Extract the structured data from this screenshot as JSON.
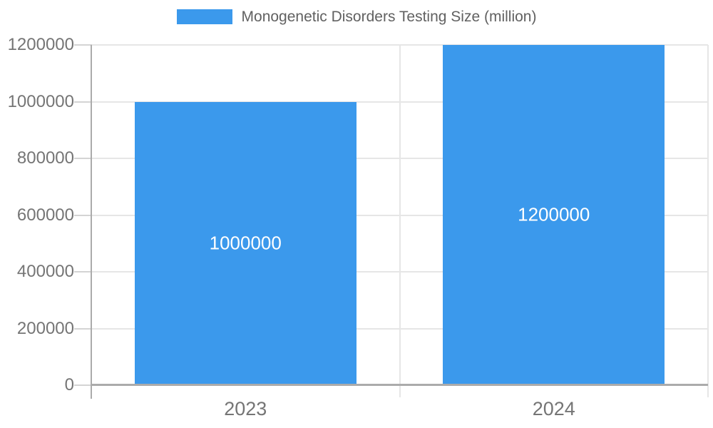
{
  "legend": {
    "label": "Monogenetic Disorders Testing Size (million)"
  },
  "colors": {
    "bar": "#3B99EC",
    "bar_label_text": "#ffffff",
    "grid_line": "#e6e6e6",
    "axis_line": "#ababab",
    "tick_mark": "#d4d4d4",
    "y_tick_text": "#757575",
    "x_tick_text": "#757575",
    "legend_text": "#616161",
    "background": "#ffffff"
  },
  "chart_data": {
    "type": "bar",
    "title": "Monogenetic Disorders Testing Size (million)",
    "categories": [
      "2023",
      "2024"
    ],
    "values": [
      1000000,
      1200000
    ],
    "bar_labels": [
      "1000000",
      "1200000"
    ],
    "ylim": [
      0,
      1200000
    ],
    "y_ticks": [
      0,
      200000,
      400000,
      600000,
      800000,
      1000000,
      1200000
    ],
    "y_tick_labels": [
      "0",
      "200000",
      "400000",
      "600000",
      "800000",
      "1000000",
      "1200000"
    ],
    "grid": true,
    "legend_position": "top-center",
    "bar_label_position": "center"
  }
}
